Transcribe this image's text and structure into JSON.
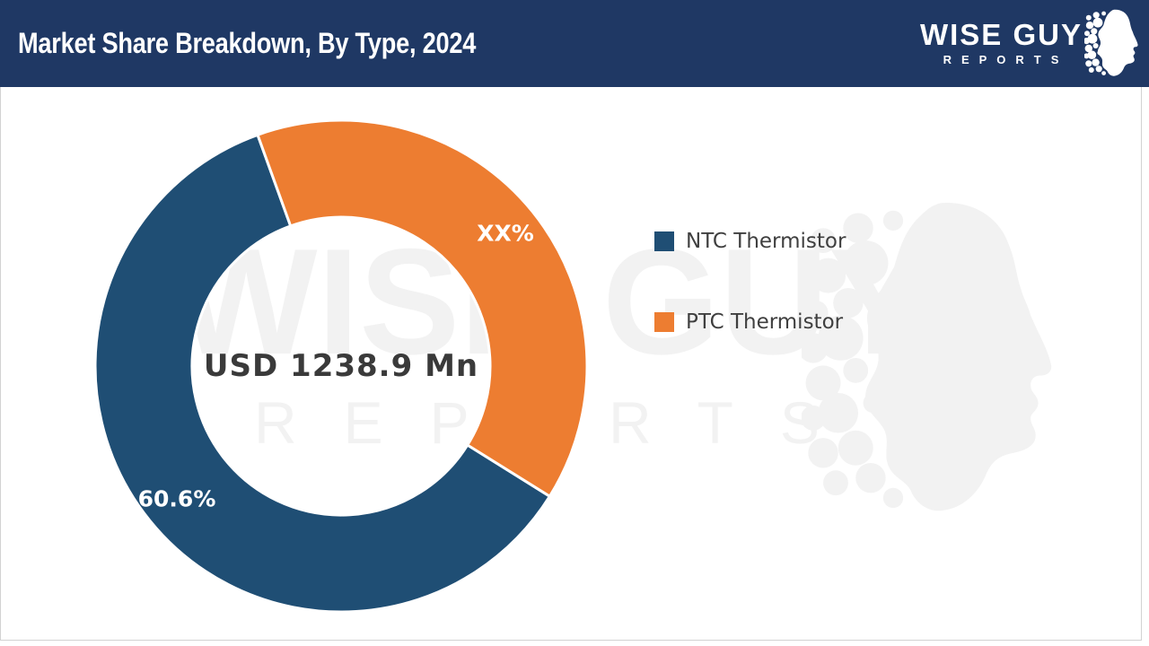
{
  "header": {
    "title": "Market Share Breakdown, By Type, 2024",
    "logo": {
      "name": "WISE GUY",
      "tagline": "REPORTS"
    }
  },
  "watermark": {
    "wordmark": "WISE GUY",
    "tagline": "REPORTS"
  },
  "chart_data": {
    "type": "pie",
    "subtype": "donut",
    "title": "Market Share Breakdown, By Type, 2024",
    "center_label": "USD 1238.9 Mn",
    "legend_position": "right",
    "start_angle_deg": 122,
    "direction": "clockwise",
    "series": [
      {
        "name": "NTC Thermistor",
        "value_pct": 60.6,
        "data_label": "60.6%",
        "color": "#1F4E74"
      },
      {
        "name": "PTC Thermistor",
        "value_pct": 39.4,
        "data_label": "XX%",
        "color": "#ED7D31"
      }
    ]
  },
  "colors": {
    "header_bg": "#1F3864",
    "title_text": "#FFFFFF",
    "ntc_blue": "#1F4E74",
    "ptc_orange": "#ED7D31",
    "center_text": "#3A3A3A",
    "legend_text": "#3F3F3F",
    "slice_label_text": "#FFFFFF",
    "watermark": "#F2F2F2",
    "frame_border": "#D2D2D2"
  }
}
